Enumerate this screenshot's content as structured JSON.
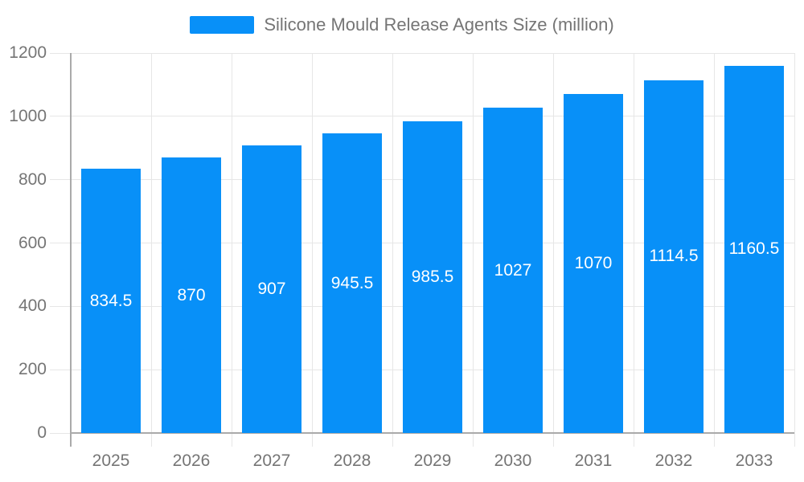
{
  "chart_data": {
    "type": "bar",
    "title": "Silicone Mould Release Agents Size (million)",
    "legend": [
      {
        "label": "Silicone Mould Release Agents Size (million)",
        "color": "#0890f8"
      }
    ],
    "legend_position": "top-center",
    "categories": [
      "2025",
      "2026",
      "2027",
      "2028",
      "2029",
      "2030",
      "2031",
      "2032",
      "2033"
    ],
    "series": [
      {
        "name": "Silicone Mould Release Agents Size (million)",
        "values": [
          834.5,
          870,
          907,
          945.5,
          985.5,
          1027,
          1070,
          1114.5,
          1160.5
        ]
      }
    ],
    "value_labels": [
      "834.5",
      "870",
      "907",
      "945.5",
      "985.5",
      "1027",
      "1070",
      "1114.5",
      "1160.5"
    ],
    "xlabel": "",
    "ylabel": "",
    "ylim": [
      0,
      1200
    ],
    "yticks": [
      0,
      200,
      400,
      600,
      800,
      1000,
      1200
    ],
    "grid": true,
    "colors": {
      "bar": "#0890f8",
      "bar_label": "#ffffff",
      "axis_text": "#757575",
      "grid_line": "#e6e6e6",
      "axis_line": "#aaaaaa",
      "background": "#ffffff"
    }
  }
}
